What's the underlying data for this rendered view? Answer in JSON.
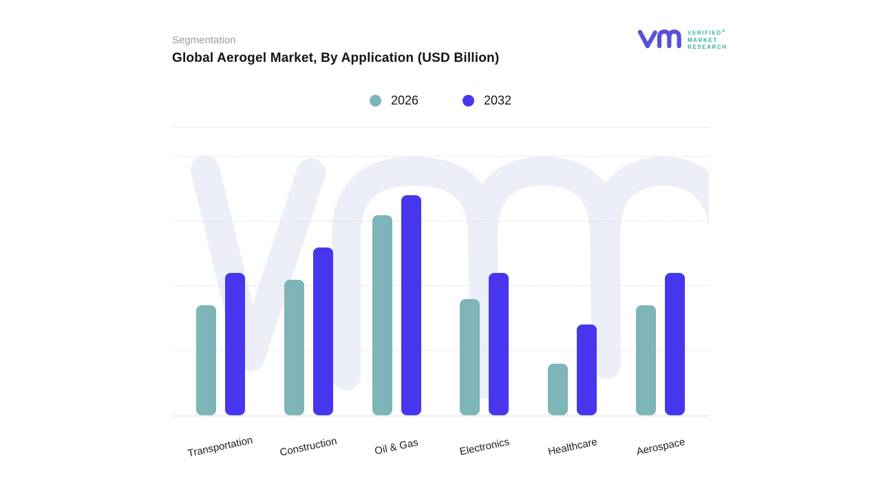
{
  "header": {
    "eyebrow": "Segmentation",
    "title": "Global Aerogel Market, By Application (USD Billion)"
  },
  "logo": {
    "brand_lines": [
      "VERIFIED",
      "MARKET",
      "RESEARCH"
    ],
    "registered_mark": "®",
    "glyph_color": "#5b50d8",
    "text_color": "#35ada6"
  },
  "chart_data": {
    "type": "bar",
    "title": "Global Aerogel Market, By Application (USD Billion)",
    "units": "USD Billion",
    "categories": [
      "Transportation",
      "Construction",
      "Oil & Gas",
      "Electronics",
      "Healthcare",
      "Aerospace"
    ],
    "series": [
      {
        "name": "2026",
        "color": "#7db5b9",
        "values": [
          1.7,
          2.1,
          3.1,
          1.8,
          0.8,
          1.7
        ]
      },
      {
        "name": "2032",
        "color": "#4836ee",
        "values": [
          2.2,
          2.6,
          3.4,
          2.2,
          1.4,
          2.2
        ]
      }
    ],
    "xlabel": "",
    "ylabel": "",
    "ylim": [
      0,
      4
    ],
    "y_axis_tick_labels_visible": false,
    "grid": "horizontal dashed lines",
    "legend_position": "top-center",
    "value_note": "Y axis has no printed tick labels; values estimated in gridline units read from the plot."
  },
  "watermark": {
    "label": "vm brand watermark",
    "color": "#eceef8"
  }
}
